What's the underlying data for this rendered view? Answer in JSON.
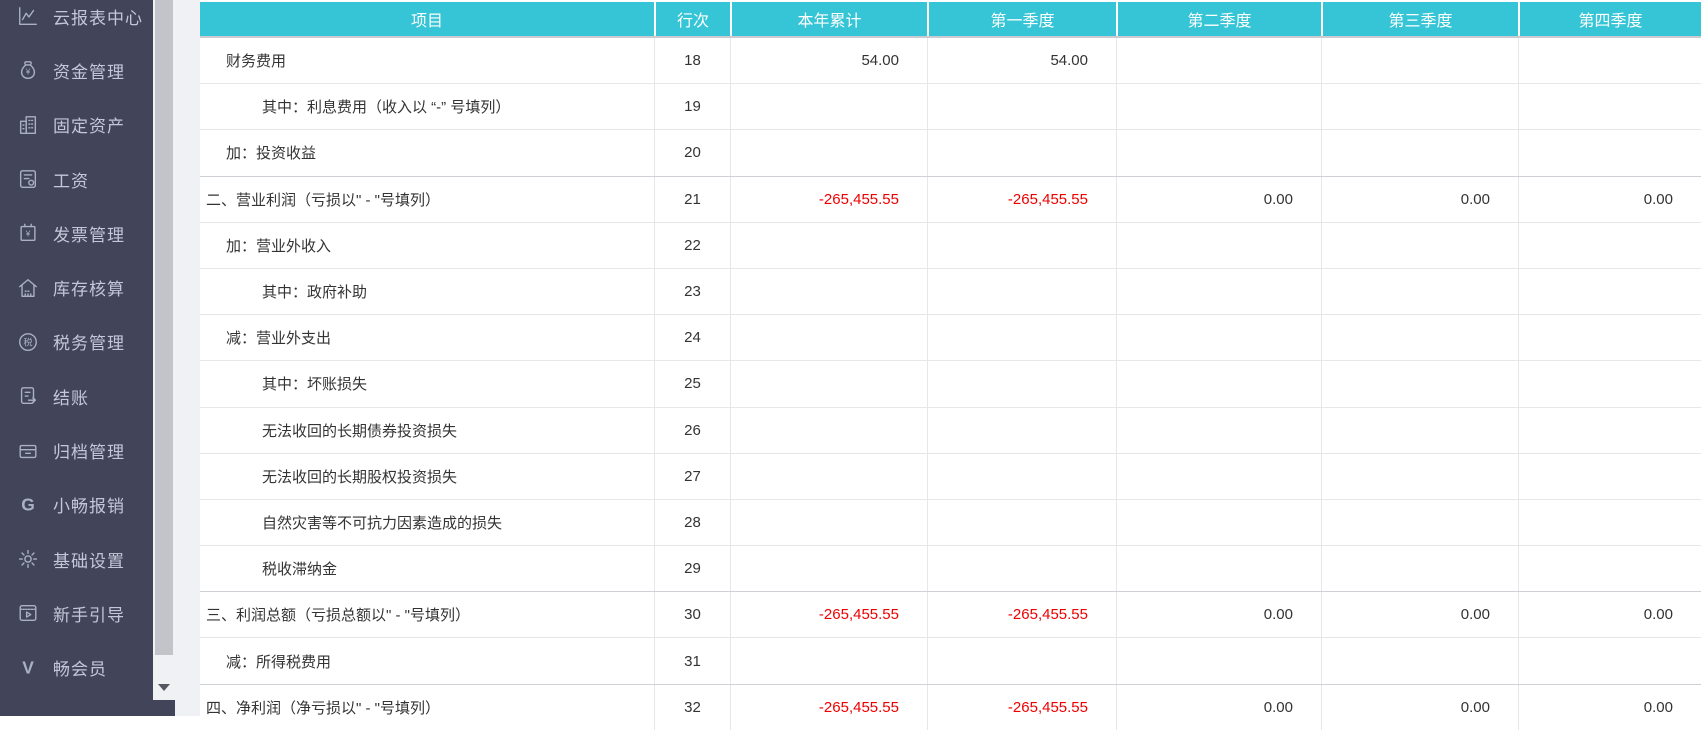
{
  "colors": {
    "header_bg": "#35c5d6",
    "sidebar_bg": "#42455a",
    "negative_value": "#ee0000",
    "cell_text": "#333333"
  },
  "sidebar": {
    "items": [
      {
        "label": "云报表中心",
        "icon": "cloud-report-chart-icon"
      },
      {
        "label": "资金管理",
        "icon": "money-bag-icon"
      },
      {
        "label": "固定资产",
        "icon": "building-icon"
      },
      {
        "label": "工资",
        "icon": "payroll-calculator-icon"
      },
      {
        "label": "发票管理",
        "icon": "invoice-icon"
      },
      {
        "label": "库存核算",
        "icon": "warehouse-icon"
      },
      {
        "label": "税务管理",
        "icon": "tax-coin-icon"
      },
      {
        "label": "结账",
        "icon": "closing-book-icon"
      },
      {
        "label": "归档管理",
        "icon": "archive-icon"
      },
      {
        "label": "小畅报销",
        "icon": "reimburse-g-icon"
      },
      {
        "label": "基础设置",
        "icon": "settings-gear-icon"
      },
      {
        "label": "新手引导",
        "icon": "video-guide-icon"
      },
      {
        "label": "畅会员",
        "icon": "member-v-icon"
      }
    ]
  },
  "scrollbar": {
    "direction": "vertical",
    "down_arrow": "▼"
  },
  "table": {
    "columns": [
      {
        "key": "item",
        "label": "项目"
      },
      {
        "key": "line",
        "label": "行次"
      },
      {
        "key": "ytd",
        "label": "本年累计"
      },
      {
        "key": "q1",
        "label": "第一季度"
      },
      {
        "key": "q2",
        "label": "第二季度"
      },
      {
        "key": "q3",
        "label": "第三季度"
      },
      {
        "key": "q4",
        "label": "第四季度"
      }
    ],
    "rows": [
      {
        "item": "财务费用",
        "indent": 1,
        "line": "18",
        "ytd": "54.00",
        "q1": "54.00",
        "q2": "",
        "q3": "",
        "q4": ""
      },
      {
        "item": "其中：利息费用（收入以 “-” 号填列）",
        "indent": 2,
        "line": "19",
        "ytd": "",
        "q1": "",
        "q2": "",
        "q3": "",
        "q4": ""
      },
      {
        "item": "加：投资收益",
        "indent": 1,
        "line": "20",
        "ytd": "",
        "q1": "",
        "q2": "",
        "q3": "",
        "q4": ""
      },
      {
        "item": "二、营业利润（亏损以\" - \"号填列）",
        "indent": 0,
        "line": "21",
        "ytd": "-265,455.55",
        "q1": "-265,455.55",
        "q2": "0.00",
        "q3": "0.00",
        "q4": "0.00"
      },
      {
        "item": "加：营业外收入",
        "indent": 1,
        "line": "22",
        "ytd": "",
        "q1": "",
        "q2": "",
        "q3": "",
        "q4": ""
      },
      {
        "item": "其中：政府补助",
        "indent": 2,
        "line": "23",
        "ytd": "",
        "q1": "",
        "q2": "",
        "q3": "",
        "q4": ""
      },
      {
        "item": "减：营业外支出",
        "indent": 1,
        "line": "24",
        "ytd": "",
        "q1": "",
        "q2": "",
        "q3": "",
        "q4": ""
      },
      {
        "item": "其中：坏账损失",
        "indent": 2,
        "line": "25",
        "ytd": "",
        "q1": "",
        "q2": "",
        "q3": "",
        "q4": ""
      },
      {
        "item": "无法收回的长期债券投资损失",
        "indent": 2,
        "line": "26",
        "ytd": "",
        "q1": "",
        "q2": "",
        "q3": "",
        "q4": ""
      },
      {
        "item": "无法收回的长期股权投资损失",
        "indent": 2,
        "line": "27",
        "ytd": "",
        "q1": "",
        "q2": "",
        "q3": "",
        "q4": ""
      },
      {
        "item": "自然灾害等不可抗力因素造成的损失",
        "indent": 2,
        "line": "28",
        "ytd": "",
        "q1": "",
        "q2": "",
        "q3": "",
        "q4": ""
      },
      {
        "item": "税收滞纳金",
        "indent": 2,
        "line": "29",
        "ytd": "",
        "q1": "",
        "q2": "",
        "q3": "",
        "q4": ""
      },
      {
        "item": "三、利润总额（亏损总额以\" - \"号填列）",
        "indent": 0,
        "line": "30",
        "ytd": "-265,455.55",
        "q1": "-265,455.55",
        "q2": "0.00",
        "q3": "0.00",
        "q4": "0.00"
      },
      {
        "item": "减：所得税费用",
        "indent": 1,
        "line": "31",
        "ytd": "",
        "q1": "",
        "q2": "",
        "q3": "",
        "q4": ""
      },
      {
        "item": "四、净利润（净亏损以\" - \"号填列）",
        "indent": 0,
        "line": "32",
        "ytd": "-265,455.55",
        "q1": "-265,455.55",
        "q2": "0.00",
        "q3": "0.00",
        "q4": "0.00"
      }
    ]
  }
}
